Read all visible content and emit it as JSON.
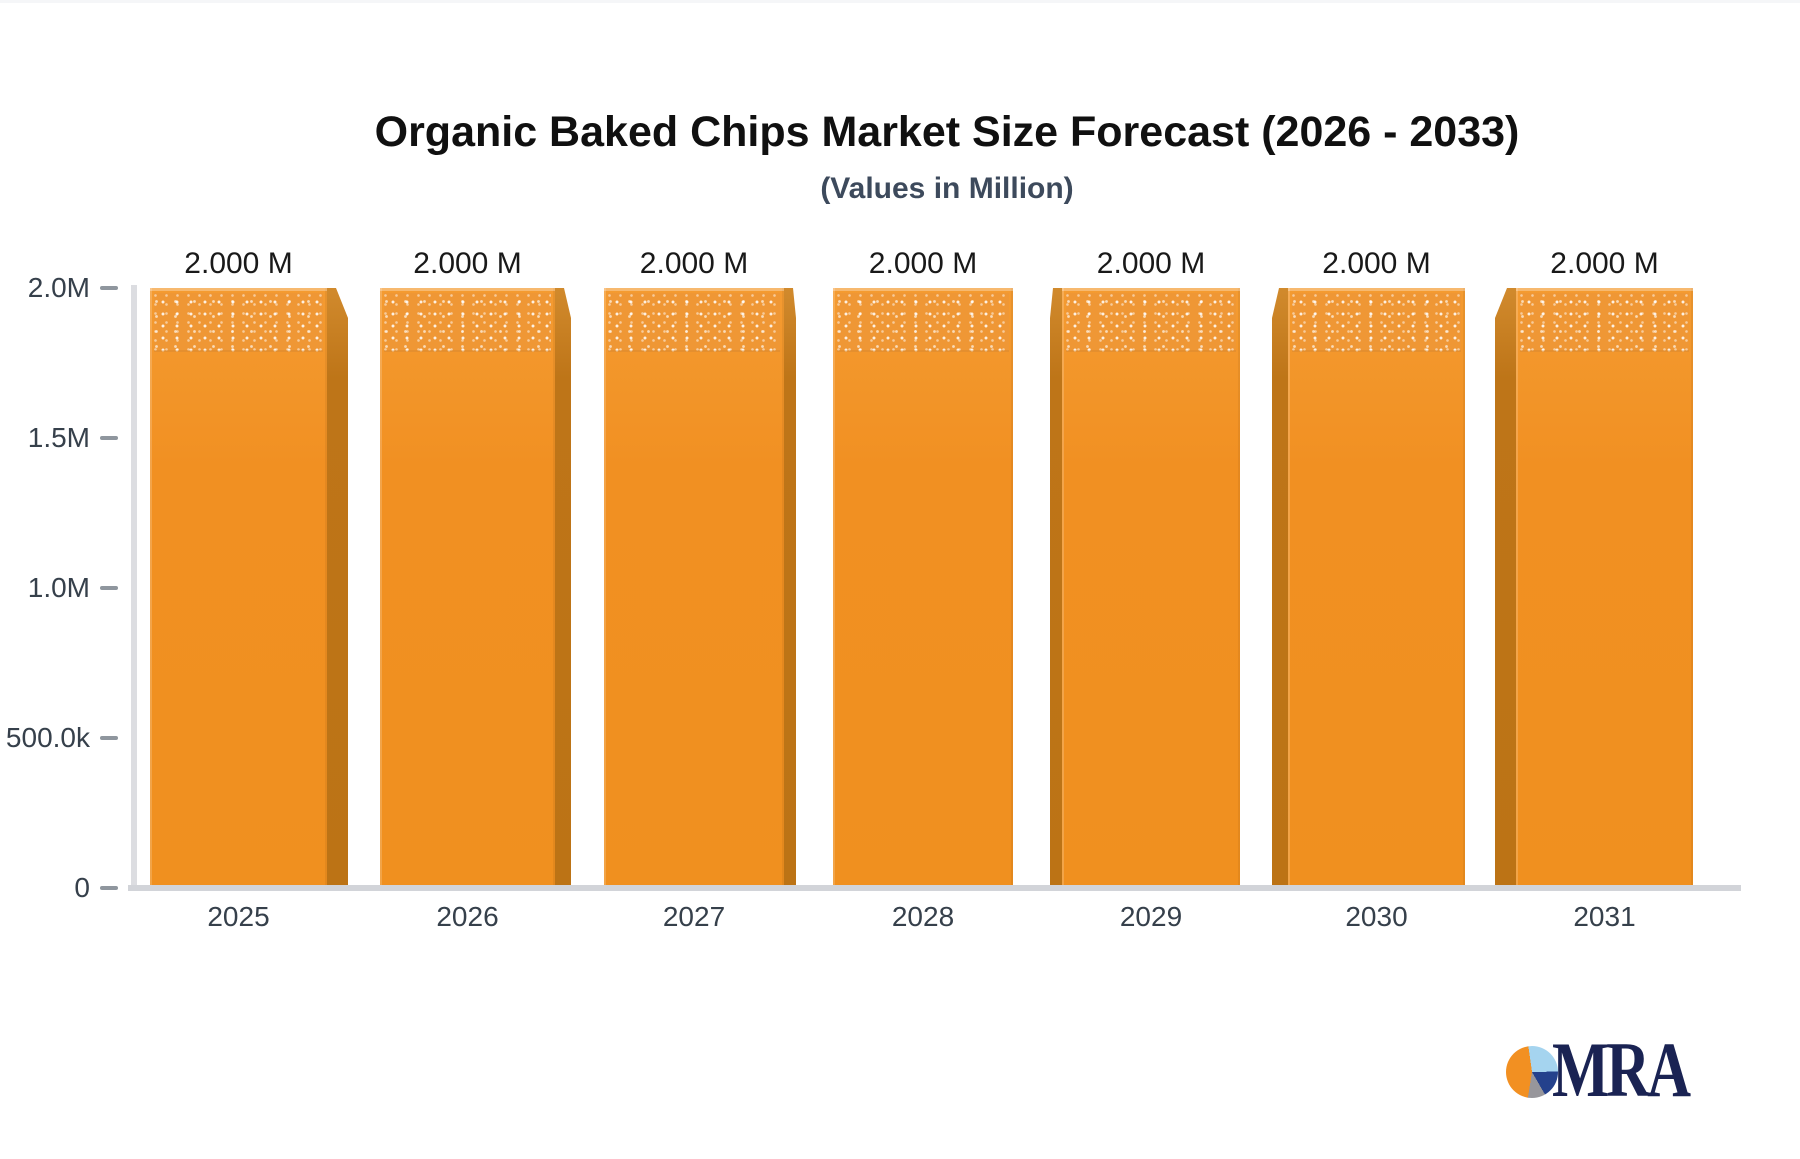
{
  "title": "Organic Baked Chips Market Size Forecast (2026 - 2033)",
  "subtitle": "(Values in Million)",
  "chart_data": {
    "type": "bar",
    "categories": [
      "2025",
      "2026",
      "2027",
      "2028",
      "2029",
      "2030",
      "2031"
    ],
    "values": [
      2000000,
      2000000,
      2000000,
      2000000,
      2000000,
      2000000,
      2000000
    ],
    "bar_labels": [
      "2.000 M",
      "2.000 M",
      "2.000 M",
      "2.000 M",
      "2.000 M",
      "2.000 M",
      "2.000 M"
    ],
    "unit": "Million",
    "title": "Organic Baked Chips Market Size Forecast (2026 - 2033)",
    "subtitle": "(Values in Million)",
    "xlabel": "",
    "ylabel": "",
    "ylim": [
      0,
      2000000
    ],
    "ytick_labels": [
      "2.0M",
      "1.5M",
      "1.0M",
      "500.0k",
      "0"
    ],
    "grid": "off",
    "legend": "none",
    "bar_style": "3d-extruded, speckled top texture",
    "bar_color": "#F1911F",
    "bar_side_color": "#BE7518",
    "axis_color": "#DCDDE1",
    "label_color": "#36404B"
  },
  "logo": {
    "text": "MRA",
    "icon": "pie-chart-icon",
    "text_color": "#1A2353",
    "pie_colors": [
      "#F29022",
      "#A5D4EF",
      "#24418C",
      "#97969B"
    ]
  }
}
